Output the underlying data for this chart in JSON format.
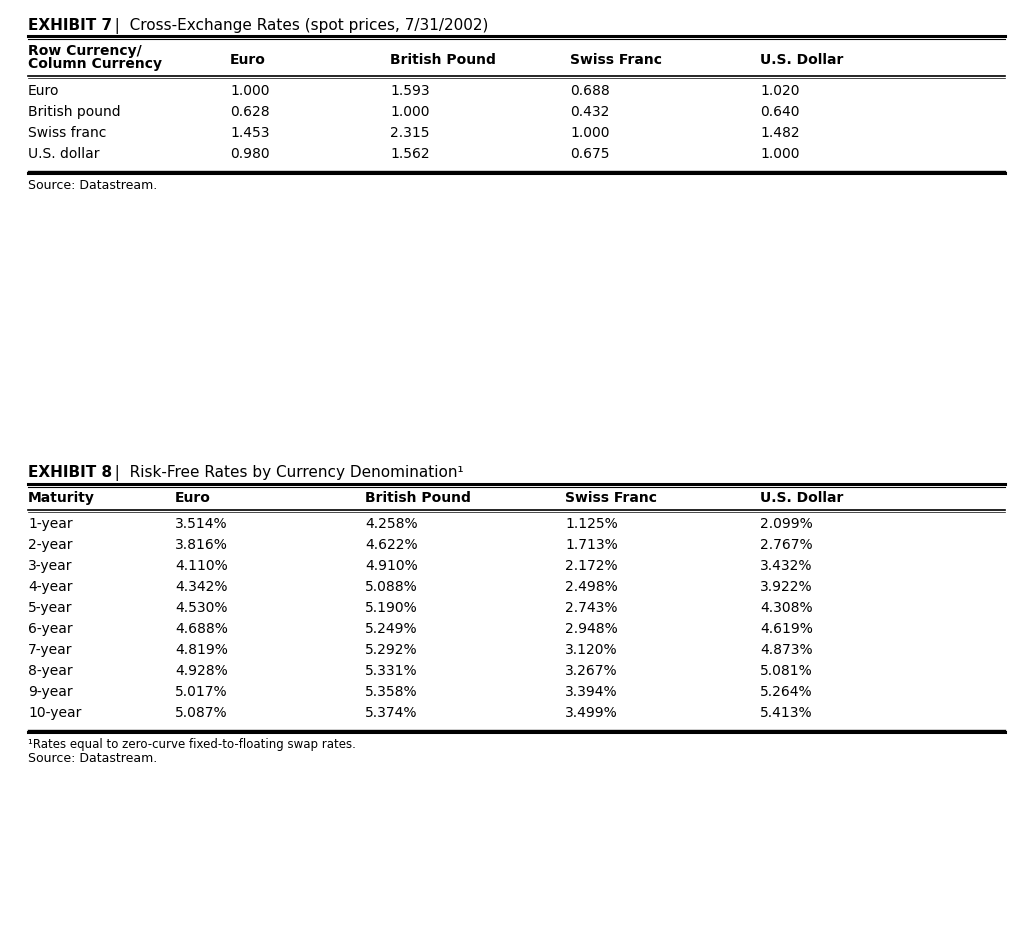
{
  "exhibit7": {
    "title_bold": "EXHIBIT 7",
    "title_rest": "  |  Cross-Exchange Rates (spot prices, 7/31/2002)",
    "header_col1_line1": "Row Currency/",
    "header_col1_line2": "Column Currency",
    "col_headers": [
      "Euro",
      "British Pound",
      "Swiss Franc",
      "U.S. Dollar"
    ],
    "row_labels": [
      "Euro",
      "British pound",
      "Swiss franc",
      "U.S. dollar"
    ],
    "data": [
      [
        "1.000",
        "1.593",
        "0.688",
        "1.020"
      ],
      [
        "0.628",
        "1.000",
        "0.432",
        "0.640"
      ],
      [
        "1.453",
        "2.315",
        "1.000",
        "1.482"
      ],
      [
        "0.980",
        "1.562",
        "0.675",
        "1.000"
      ]
    ],
    "source": "Source: Datastream."
  },
  "exhibit8": {
    "title_bold": "EXHIBIT 8",
    "title_rest": "  |  Risk-Free Rates by Currency Denomination¹",
    "col_headers": [
      "Maturity",
      "Euro",
      "British Pound",
      "Swiss Franc",
      "U.S. Dollar"
    ],
    "row_labels": [
      "1-year",
      "2-year",
      "3-year",
      "4-year",
      "5-year",
      "6-year",
      "7-year",
      "8-year",
      "9-year",
      "10-year"
    ],
    "data": [
      [
        "3.514%",
        "4.258%",
        "1.125%",
        "2.099%"
      ],
      [
        "3.816%",
        "4.622%",
        "1.713%",
        "2.767%"
      ],
      [
        "4.110%",
        "4.910%",
        "2.172%",
        "3.432%"
      ],
      [
        "4.342%",
        "5.088%",
        "2.498%",
        "3.922%"
      ],
      [
        "4.530%",
        "5.190%",
        "2.743%",
        "4.308%"
      ],
      [
        "4.688%",
        "5.249%",
        "2.948%",
        "4.619%"
      ],
      [
        "4.819%",
        "5.292%",
        "3.120%",
        "4.873%"
      ],
      [
        "4.928%",
        "5.331%",
        "3.267%",
        "5.081%"
      ],
      [
        "5.017%",
        "5.358%",
        "3.394%",
        "5.264%"
      ],
      [
        "5.087%",
        "5.374%",
        "3.499%",
        "5.413%"
      ]
    ],
    "footnote": "¹Rates equal to zero-curve fixed-to-floating swap rates.",
    "source": "Source: Datastream."
  },
  "bg_color": "#ffffff",
  "text_color": "#000000"
}
